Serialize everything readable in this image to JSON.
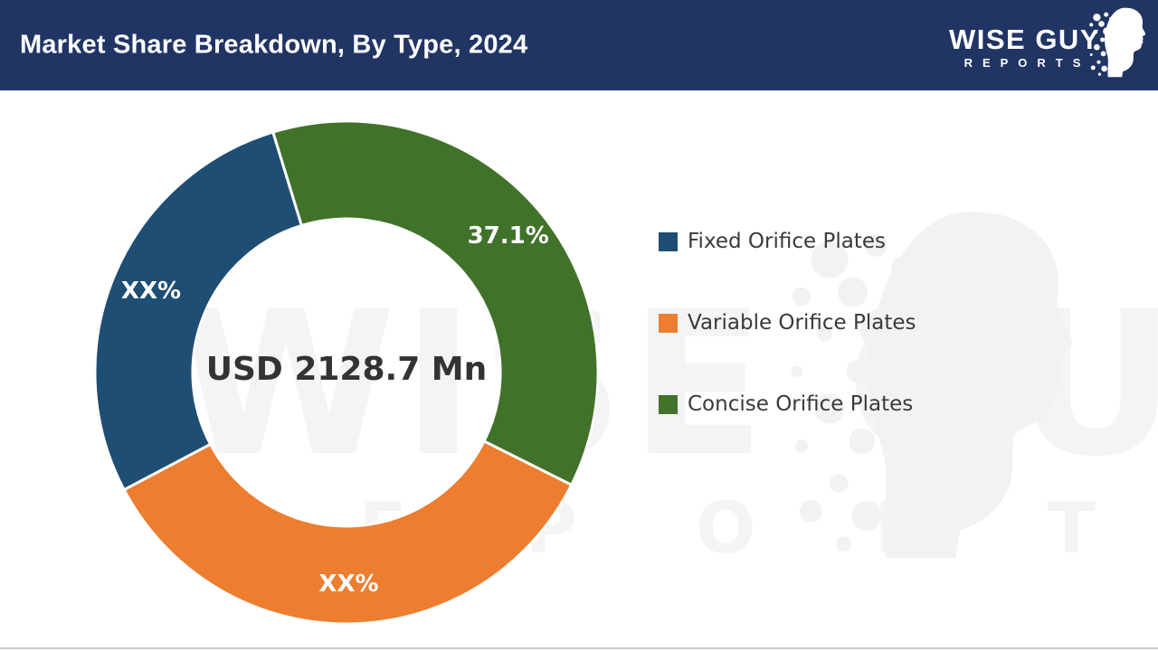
{
  "header": {
    "title": "Market Share Breakdown, By Type, 2024",
    "bg_color": "#213564",
    "logo": {
      "line1": "WISE GUY",
      "line2": "REPORTS"
    }
  },
  "watermark": {
    "line1": "WISE GUY",
    "line2": "R E P O R T S"
  },
  "chart_data": {
    "type": "pie",
    "subtype": "donut",
    "title": "Market Share Breakdown, By Type, 2024",
    "center_label": "USD 2128.7 Mn",
    "total_value_mn": 2128.7,
    "unit": "USD Mn",
    "start_angle_deg": -17,
    "direction": "clockwise",
    "legend_position": "right",
    "slices": [
      {
        "label": "Concise Orifice Plates",
        "display_label": "37.1%",
        "value_pct": 37.1,
        "color": "#41722A"
      },
      {
        "label": "Variable Orifice Plates",
        "display_label": "XX%",
        "value_pct": 34.9,
        "color": "#ED7D2F"
      },
      {
        "label": "Fixed Orifice Plates",
        "display_label": "XX%",
        "value_pct": 28.0,
        "color": "#1F4E74"
      }
    ]
  },
  "legend": {
    "items": [
      {
        "label": "Fixed Orifice Plates",
        "color": "#1F4E74"
      },
      {
        "label": "Variable Orifice Plates",
        "color": "#ED7D2F"
      },
      {
        "label": "Concise Orifice Plates",
        "color": "#41722A"
      }
    ]
  },
  "colors": {
    "header_bg": "#213564",
    "blue": "#1F4E74",
    "orange": "#ED7D2F",
    "green": "#41722A",
    "center_text": "#333333",
    "watermark": "#f4f4f4",
    "bottom_rule": "#cccccc"
  }
}
